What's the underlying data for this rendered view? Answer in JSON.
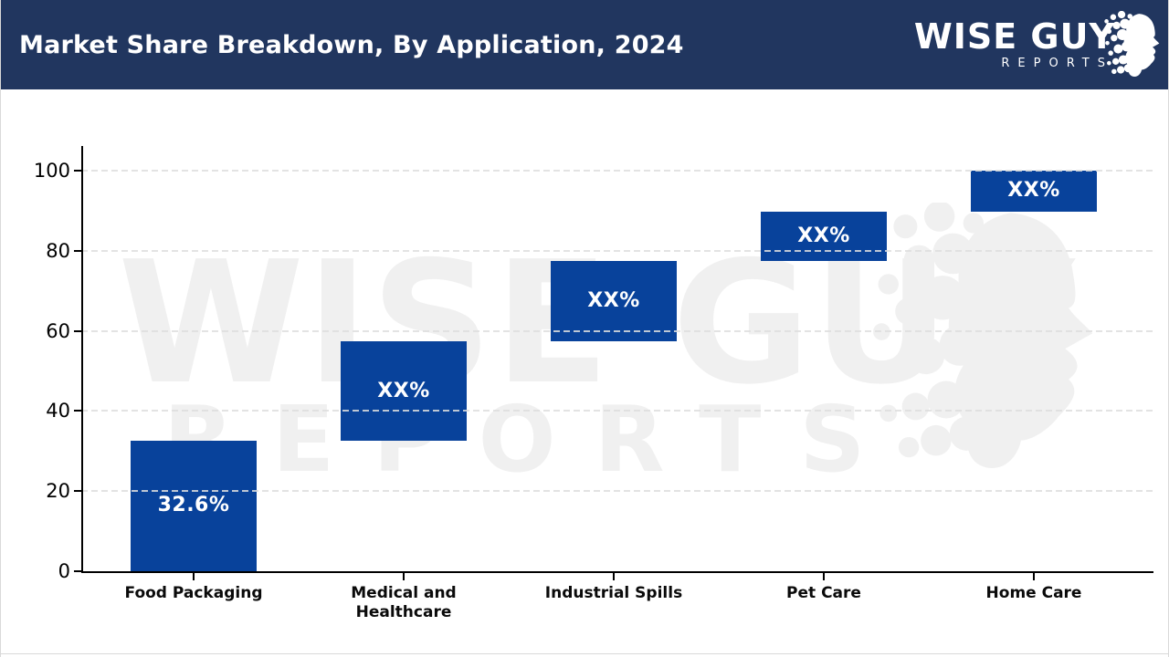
{
  "header": {
    "title": "Market Share Breakdown, By Application, 2024",
    "logo": {
      "wordmark": "WISE GUY",
      "subtext": "REPORTS"
    }
  },
  "watermark": {
    "wordmark": "WISE GUY",
    "subtext": "REPORTS"
  },
  "colors": {
    "header_bg": "#21365f",
    "bar": "#08429b",
    "bar_label": "#ffffff",
    "grid": "#e0e0e0",
    "axis": "#000000",
    "watermark": "#f0f0f0"
  },
  "chart_data": {
    "type": "bar",
    "subtype": "floating-waterfall",
    "title": "Market Share Breakdown, By Application, 2024",
    "categories": [
      "Food Packaging",
      "Medical and Healthcare",
      "Industrial Spills",
      "Pet Care",
      "Home Care"
    ],
    "bars": [
      {
        "category": "Food Packaging",
        "start": 0,
        "end": 32.6,
        "value": 32.6,
        "label": "32.6%"
      },
      {
        "category": "Medical and Healthcare",
        "start": 32.6,
        "end": 57.3,
        "value": 24.7,
        "label": "XX%"
      },
      {
        "category": "Industrial Spills",
        "start": 57.3,
        "end": 77.4,
        "value": 20.1,
        "label": "XX%"
      },
      {
        "category": "Pet Care",
        "start": 77.4,
        "end": 89.8,
        "value": 12.4,
        "label": "XX%"
      },
      {
        "category": "Home Care",
        "start": 89.8,
        "end": 100,
        "value": 10.2,
        "label": "XX%"
      }
    ],
    "yticks": [
      0,
      20,
      40,
      60,
      80,
      100
    ],
    "ylim": [
      0,
      106
    ],
    "xlabel": "",
    "ylabel": "",
    "grid": "dashed horizontal",
    "legend": null
  }
}
